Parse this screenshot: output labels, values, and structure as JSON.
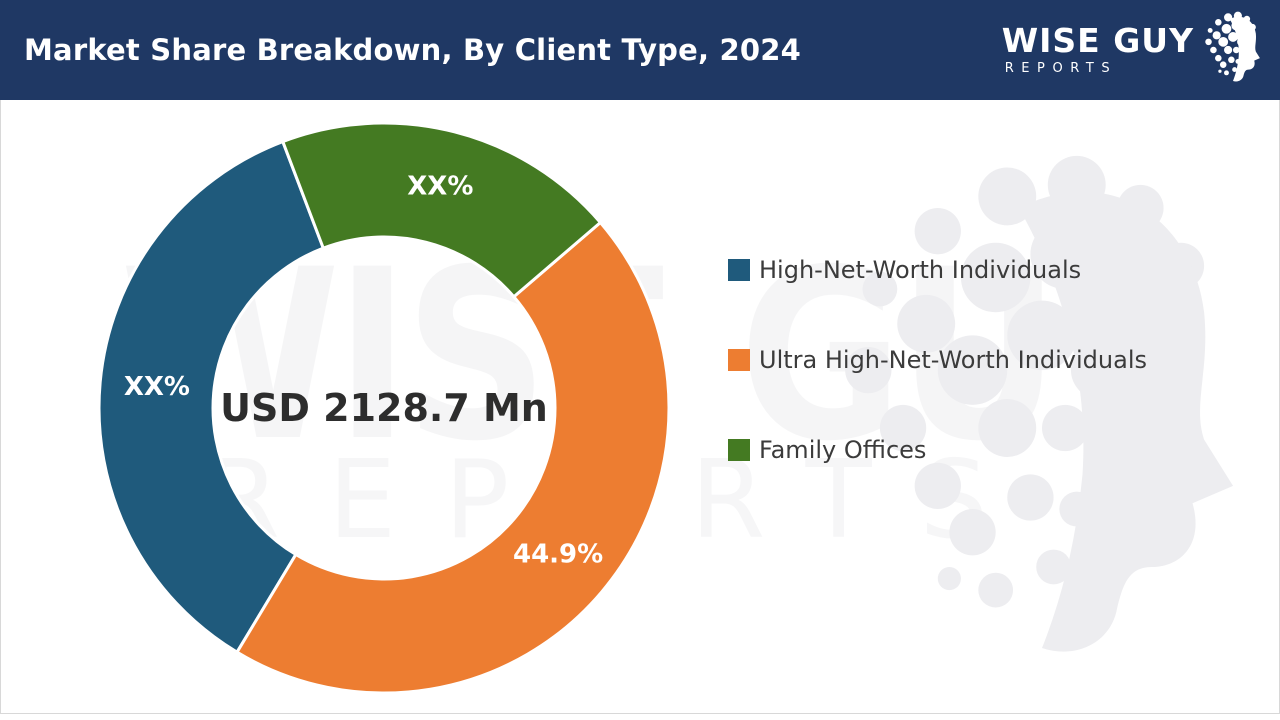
{
  "header": {
    "title": "Market Share Breakdown, By Client Type, 2024",
    "logo_line1": "WISE GUY",
    "logo_line2": "REPORTS"
  },
  "watermark": {
    "line1": "WISE GUY",
    "line2": "REPORTS"
  },
  "colors": {
    "header_bg": "#1F3864",
    "blue_segment": "#1F5A7C",
    "orange_segment": "#ED7D31",
    "green_segment": "#447A22"
  },
  "chart_data": {
    "type": "pie",
    "subtype": "donut",
    "title": "Market Share Breakdown, By Client Type, 2024",
    "center_label": "USD 2128.7 Mn",
    "start_angle_deg": 110.8,
    "donut_hole_ratio": 0.6,
    "legend_position": "right",
    "segments": [
      {
        "name": "High-Net-Worth Individuals",
        "display_label": "XX%",
        "pct_of_circle": 35.6,
        "color": "#1F5A7C"
      },
      {
        "name": "Ultra High-Net-Worth Individuals",
        "display_label": "44.9%",
        "pct_of_circle": 44.9,
        "color": "#ED7D31"
      },
      {
        "name": "Family Offices",
        "display_label": "XX%",
        "pct_of_circle": 19.5,
        "color": "#447A22"
      }
    ]
  }
}
